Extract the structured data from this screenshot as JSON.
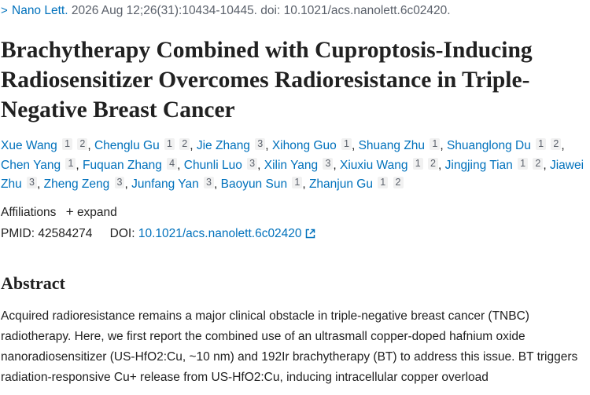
{
  "citation": {
    "journal": "Nano Lett.",
    "details": "2026 Aug 12;26(31):10434-10445. doi: 10.1021/acs.nanolett.6c02420."
  },
  "title": "Brachytherapy Combined with Cuproptosis-Inducing Radiosensitizer Overcomes Radioresistance in Triple-Negative Breast Cancer",
  "authors": [
    {
      "name": "Xue Wang",
      "affils": [
        "1",
        "2"
      ]
    },
    {
      "name": "Chenglu Gu",
      "affils": [
        "1",
        "2"
      ]
    },
    {
      "name": "Jie Zhang",
      "affils": [
        "3"
      ]
    },
    {
      "name": "Xihong Guo",
      "affils": [
        "1"
      ]
    },
    {
      "name": "Shuang Zhu",
      "affils": [
        "1"
      ]
    },
    {
      "name": "Shuanglong Du",
      "affils": [
        "1",
        "2"
      ]
    },
    {
      "name": "Chen Yang",
      "affils": [
        "1"
      ]
    },
    {
      "name": "Fuquan Zhang",
      "affils": [
        "4"
      ]
    },
    {
      "name": "Chunli Luo",
      "affils": [
        "3"
      ]
    },
    {
      "name": "Xilin Yang",
      "affils": [
        "3"
      ]
    },
    {
      "name": "Xiuxiu Wang",
      "affils": [
        "1",
        "2"
      ]
    },
    {
      "name": "Jingjing Tian",
      "affils": [
        "1",
        "2"
      ]
    },
    {
      "name": "Jiawei Zhu",
      "affils": [
        "3"
      ]
    },
    {
      "name": "Zheng Zeng",
      "affils": [
        "3"
      ]
    },
    {
      "name": "Junfang Yan",
      "affils": [
        "3"
      ]
    },
    {
      "name": "Baoyun Sun",
      "affils": [
        "1"
      ]
    },
    {
      "name": "Zhanjun Gu",
      "affils": [
        "1",
        "2"
      ]
    }
  ],
  "affiliations": {
    "label": "Affiliations",
    "expand": "expand"
  },
  "ids": {
    "pmid_label": "PMID:",
    "pmid": "42584274",
    "doi_label": "DOI:",
    "doi": "10.1021/acs.nanolett.6c02420"
  },
  "abstract": {
    "heading": "Abstract",
    "text": "Acquired radioresistance remains a major clinical obstacle in triple-negative breast cancer (TNBC) radiotherapy. Here, we first report the combined use of an ultrasmall copper-doped hafnium oxide nanoradiosensitizer (US-HfO2:Cu, ~10 nm) and 192Ir brachytherapy (BT) to address this issue. BT triggers radiation-responsive Cu+ release from US-HfO2:Cu, inducing intracellular copper overload"
  }
}
